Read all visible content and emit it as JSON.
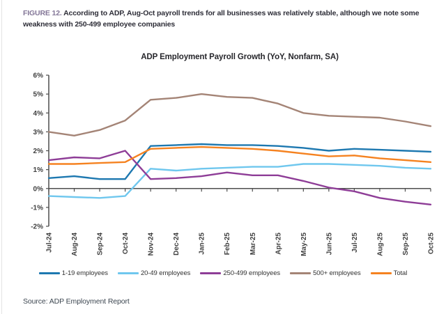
{
  "page": {
    "header": {
      "figure_label": "FIGURE 12.",
      "text": "According to ADP, Aug-Oct payroll trends for all businesses was relatively stable, although we note some weakness with 250-499 employee companies"
    },
    "source": "Source: ADP Employment Report"
  },
  "colors": {
    "figure_label": "#837697",
    "header_text": "#2e2e38",
    "axis": "#4d4d4d",
    "tick_text": "#3f3f3f"
  },
  "chart_data": {
    "type": "line",
    "title": "ADP Employment Payroll Growth (YoY, Nonfarm, SA)",
    "xlabel": "",
    "ylabel": "",
    "ylim": [
      -2,
      6
    ],
    "ytick_values": [
      6,
      5,
      4,
      3,
      2,
      1,
      0,
      -1,
      -2
    ],
    "ytick_labels": [
      "6%",
      "5%",
      "4%",
      "3%",
      "2%",
      "1%",
      "0%",
      "-1%",
      "-2%"
    ],
    "grid": false,
    "legend_position": "bottom",
    "categories": [
      "Jul-24",
      "Aug-24",
      "Sep-24",
      "Oct-24",
      "Nov-24",
      "Dec-24",
      "Jan-25",
      "Feb-25",
      "Mar-25",
      "Apr-25",
      "May-25",
      "Jun-25",
      "Jul-25",
      "Aug-25",
      "Sep-25",
      "Oct-25"
    ],
    "series": [
      {
        "name": "1-19 employees",
        "color": "#1d78b0",
        "values": [
          0.55,
          0.65,
          0.5,
          0.5,
          2.25,
          2.3,
          2.35,
          2.3,
          2.3,
          2.25,
          2.15,
          2.0,
          2.1,
          2.05,
          2.0,
          1.95
        ]
      },
      {
        "name": "20-49 employees",
        "color": "#6fc7ee",
        "values": [
          -0.4,
          -0.45,
          -0.5,
          -0.4,
          1.05,
          0.95,
          1.05,
          1.1,
          1.15,
          1.15,
          1.3,
          1.3,
          1.25,
          1.2,
          1.1,
          1.05
        ]
      },
      {
        "name": "250-499 employees",
        "color": "#8e3d97",
        "values": [
          1.5,
          1.65,
          1.6,
          2.0,
          0.5,
          0.55,
          0.65,
          0.85,
          0.7,
          0.7,
          0.4,
          0.05,
          -0.15,
          -0.5,
          -0.7,
          -0.85
        ]
      },
      {
        "name": "500+ employees",
        "color": "#a48476",
        "values": [
          3.0,
          2.8,
          3.1,
          3.6,
          4.7,
          4.8,
          5.0,
          4.85,
          4.8,
          4.5,
          4.0,
          3.85,
          3.8,
          3.75,
          3.55,
          3.3
        ]
      },
      {
        "name": "Total",
        "color": "#f58220",
        "values": [
          1.3,
          1.3,
          1.35,
          1.4,
          2.1,
          2.15,
          2.2,
          2.15,
          2.1,
          2.0,
          1.85,
          1.7,
          1.75,
          1.6,
          1.5,
          1.4
        ]
      }
    ]
  }
}
